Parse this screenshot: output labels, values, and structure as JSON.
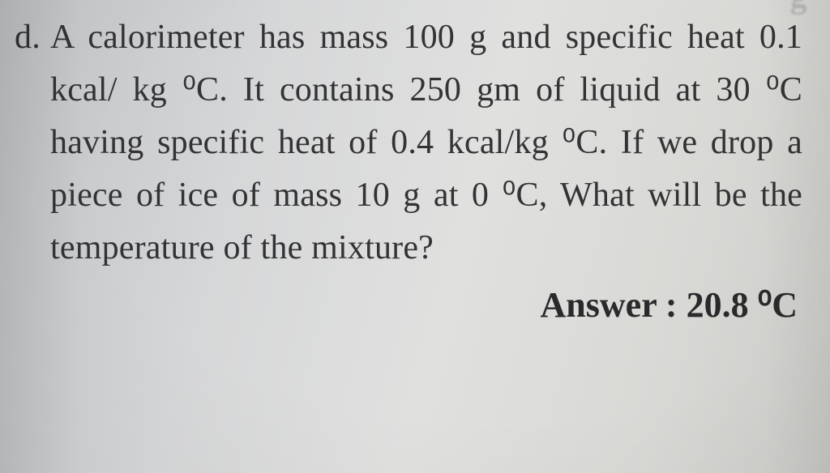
{
  "typography": {
    "body_font": "Times New Roman",
    "body_fontsize_pt": 42,
    "body_lineheight": 1.55,
    "body_color": "#333335",
    "answer_fontsize_pt": 44,
    "answer_weight": 700,
    "answer_color": "#2a2a2c",
    "alignment": "justify"
  },
  "background": {
    "base_gradient_colors": [
      "#bfc1c4",
      "#d6d7d8",
      "#e0e0df",
      "#d8d8d5",
      "#c9cac6"
    ],
    "vignette_strength": 0.06
  },
  "problem": {
    "label": "d.",
    "text": "A calorimeter has mass 100 g and specific heat 0.1 kcal/ kg ⁰C. It contains 250 gm of liquid at 30 ⁰C having specific heat of 0.4 kcal/kg ⁰C. If we drop a piece of ice of mass 10 g at 0 ⁰C, What will be the temperature of the mixture?",
    "values": {
      "calorimeter_mass_g": 100,
      "calorimeter_specific_heat_kcal_per_kg_C": 0.1,
      "liquid_mass_g": 250,
      "liquid_initial_temp_C": 30,
      "liquid_specific_heat_kcal_per_kg_C": 0.4,
      "ice_mass_g": 10,
      "ice_initial_temp_C": 0
    }
  },
  "answer": {
    "prefix": "Answer : ",
    "value": "20.8",
    "unit": "⁰C",
    "full": "Answer : 20.8 ⁰C"
  },
  "ghost_text": "g"
}
